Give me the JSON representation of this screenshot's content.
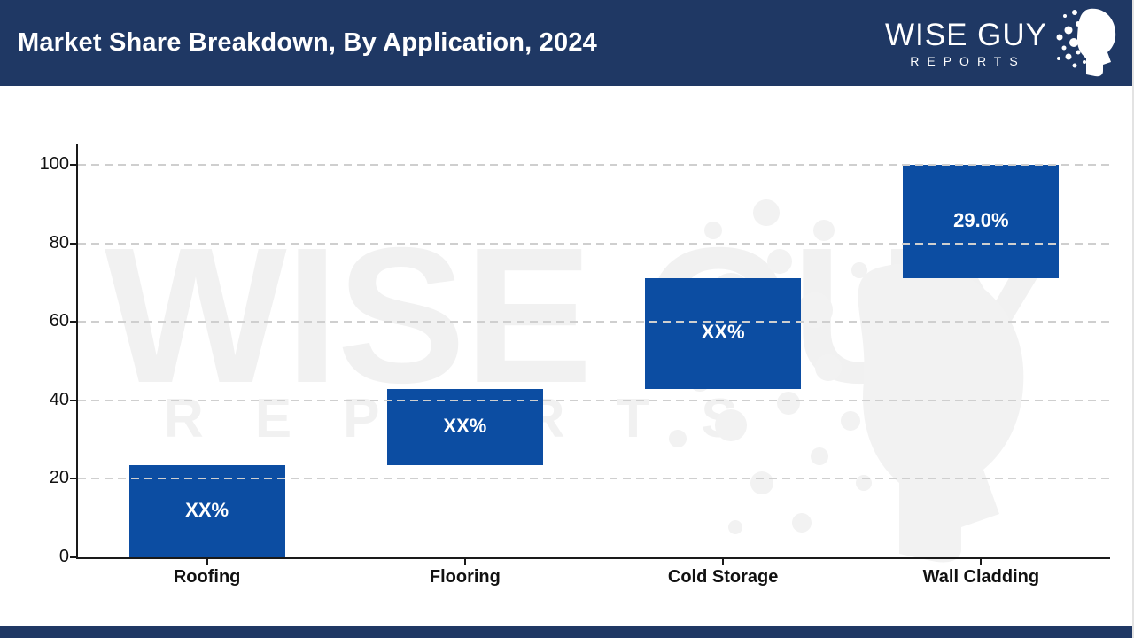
{
  "header": {
    "title": "Market Share Breakdown, By Application, 2024",
    "brand": {
      "line1": "WISE GUY",
      "line2": "REPORTS"
    }
  },
  "watermark": {
    "line1": "WISE GUY",
    "line2": "REPORTS"
  },
  "colors": {
    "header_bg": "#1f3864",
    "bar": "#0c4da2",
    "grid": "#cfcfcf",
    "axis": "#1a1a1a",
    "watermark": "#f1f1f1",
    "bar_label": "#ffffff"
  },
  "chart_data": {
    "type": "bar",
    "subtype": "floating-waterfall",
    "title": "Market Share Breakdown, By Application, 2024",
    "categories": [
      "Roofing",
      "Flooring",
      "Cold Storage",
      "Wall Cladding"
    ],
    "segments": [
      {
        "category": "Roofing",
        "start": 0,
        "end": 23.5,
        "label": "XX%"
      },
      {
        "category": "Flooring",
        "start": 23.5,
        "end": 43,
        "label": "XX%"
      },
      {
        "category": "Cold Storage",
        "start": 43,
        "end": 71,
        "label": "XX%"
      },
      {
        "category": "Wall Cladding",
        "start": 71,
        "end": 100,
        "label": "29.0%"
      }
    ],
    "xlabel": "",
    "ylabel": "",
    "ylim": [
      0,
      100
    ],
    "yticks": [
      0,
      20,
      40,
      60,
      80,
      100
    ],
    "grid": "horizontal-dashed",
    "legend": "none",
    "bar_color": "#0c4da2"
  }
}
